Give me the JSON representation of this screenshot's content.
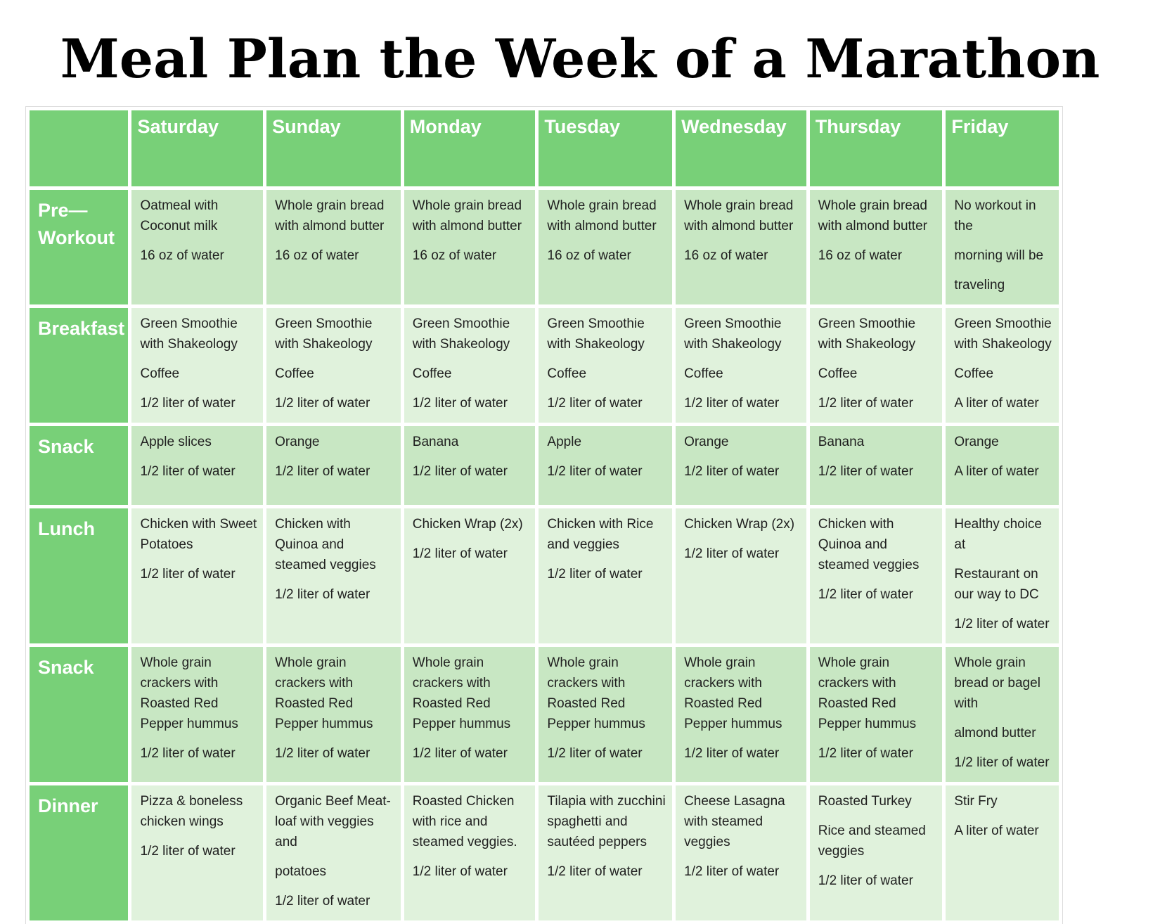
{
  "title": "Meal Plan the Week of a Marathon",
  "colors": {
    "header_green": "#78d078",
    "row_medium_green": "#c8e7c3",
    "row_light_green": "#e0f2dc",
    "label_text": "#ffffff",
    "cell_text": "#1f1f1f"
  },
  "table": {
    "columns": [
      "Saturday",
      "Sunday",
      "Monday",
      "Tuesday",
      "Wednesday",
      "Thursday",
      "Friday"
    ],
    "rows": [
      {
        "label": "Pre—Workout",
        "cells": [
          [
            "Oatmeal with Coconut milk",
            "16 oz of water"
          ],
          [
            "Whole grain bread with almond butter",
            "16 oz of water"
          ],
          [
            "Whole grain bread with almond butter",
            "16 oz of water"
          ],
          [
            "Whole grain bread with almond butter",
            "16 oz of water"
          ],
          [
            "Whole grain bread with almond butter",
            "16 oz of water"
          ],
          [
            "Whole grain bread with almond butter",
            "16 oz of water"
          ],
          [
            "No workout in the",
            "morning will be",
            "traveling"
          ]
        ]
      },
      {
        "label": "Breakfast",
        "cells": [
          [
            "Green Smoothie with Shakeology",
            "Coffee",
            "1/2 liter of water"
          ],
          [
            "Green Smoothie with Shakeology",
            "Coffee",
            "1/2 liter of water"
          ],
          [
            "Green Smoothie with Shakeology",
            "Coffee",
            "1/2 liter of water"
          ],
          [
            "Green Smoothie with Shakeology",
            "Coffee",
            "1/2 liter of water"
          ],
          [
            "Green Smoothie with Shakeology",
            "Coffee",
            "1/2 liter of water"
          ],
          [
            "Green Smoothie with Shakeology",
            "Coffee",
            "1/2 liter of water"
          ],
          [
            "Green Smoothie with Shakeology",
            "Coffee",
            "A liter of water"
          ]
        ]
      },
      {
        "label": "Snack",
        "cells": [
          [
            "Apple slices",
            "1/2 liter of water"
          ],
          [
            "Orange",
            "1/2 liter of water"
          ],
          [
            "Banana",
            "1/2 liter of water"
          ],
          [
            "Apple",
            "1/2 liter of water"
          ],
          [
            "Orange",
            "1/2 liter of water"
          ],
          [
            "Banana",
            "1/2 liter of water"
          ],
          [
            "Orange",
            "A liter of water"
          ]
        ]
      },
      {
        "label": "Lunch",
        "cells": [
          [
            "Chicken  with Sweet Potatoes",
            "1/2 liter of water"
          ],
          [
            "Chicken  with Quinoa and steamed veggies",
            "1/2 liter of  water"
          ],
          [
            "Chicken Wrap (2x)",
            "1/2 liter of water"
          ],
          [
            "Chicken  with Rice and veggies",
            "1/2 liter of water"
          ],
          [
            "Chicken Wrap (2x)",
            "1/2 liter of water"
          ],
          [
            "Chicken  with Quinoa and steamed veggies",
            "1/2 liter of water"
          ],
          [
            "Healthy choice at",
            "Restaurant on our way to DC",
            "1/2 liter of water"
          ]
        ]
      },
      {
        "label": "Snack",
        "cells": [
          [
            "Whole grain  crackers with Roasted Red Pepper hummus",
            "1/2 liter of water"
          ],
          [
            "Whole grain  crackers with Roasted Red Pepper hummus",
            "1/2 liter of water"
          ],
          [
            "Whole grain  crackers with Roasted Red Pepper hummus",
            "1/2 liter of water"
          ],
          [
            "Whole grain  crackers with Roasted Red Pepper hummus",
            "1/2 liter of water"
          ],
          [
            "Whole grain  crackers with Roasted Red Pepper hummus",
            "1/2 liter of water"
          ],
          [
            "Whole grain  crackers with Roasted Red Pepper hummus",
            "1/2 liter of water"
          ],
          [
            "Whole grain bread or bagel with",
            "almond butter",
            "1/2 liter of water"
          ]
        ]
      },
      {
        "label": "Dinner",
        "cells": [
          [
            "Pizza  & boneless chicken  wings",
            "1/2 liter of water"
          ],
          [
            "Organic Beef  Meat-loaf with veggies and",
            "potatoes",
            "1/2 liter of water"
          ],
          [
            "Roasted Chicken with rice and steamed veggies.",
            "1/2 liter of water"
          ],
          [
            "Tilapia with zucchini spaghetti and sautéed peppers",
            "1/2 liter of water"
          ],
          [
            "Cheese Lasagna with steamed veggies",
            "1/2 liter of water"
          ],
          [
            "Roasted Turkey",
            "Rice  and steamed veggies",
            "1/2 liter of water"
          ],
          [
            "Stir Fry",
            "A liter of water"
          ]
        ]
      }
    ]
  }
}
